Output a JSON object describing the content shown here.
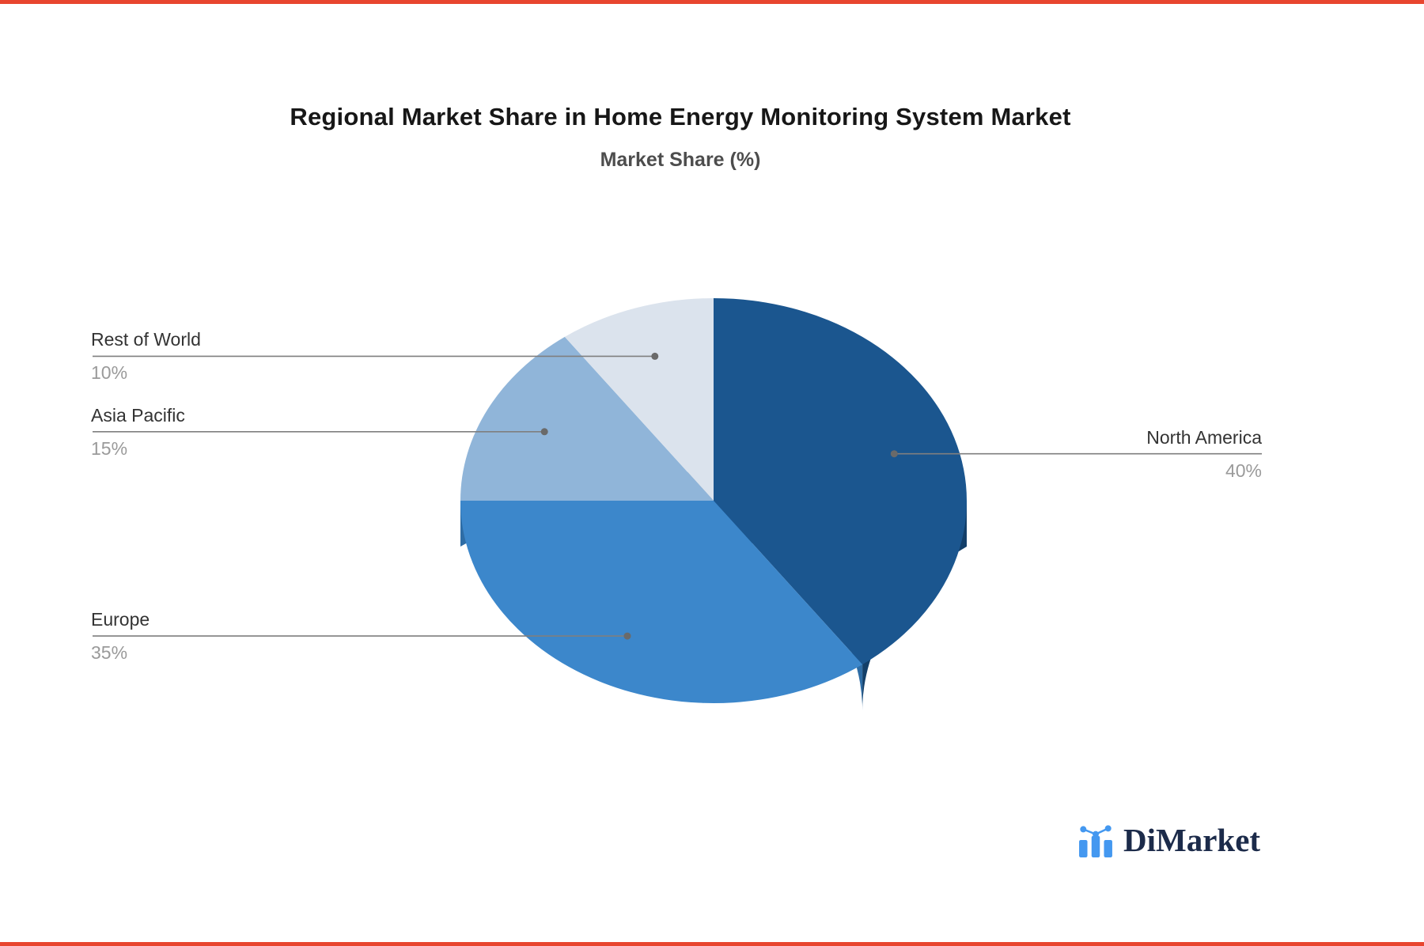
{
  "frame_color": "#e8452f",
  "title": "Regional Market Share in Home Energy Monitoring System Market",
  "subtitle": "Market Share (%)",
  "logo": {
    "text": "DiMarket",
    "icon": "mini-bar-line-chart",
    "icon_color": "#4498f0",
    "text_color": "#1c2b4a"
  },
  "chart_data": {
    "type": "pie",
    "style": "3d",
    "title": "Regional Market Share in Home Energy Monitoring System Market",
    "subtitle": "Market Share (%)",
    "unit": "%",
    "start_angle": "12-oclock",
    "direction": "clockwise",
    "legend_position": "none",
    "categories": [
      "North America",
      "Europe",
      "Asia Pacific",
      "Rest of World"
    ],
    "values": [
      40,
      35,
      15,
      10
    ],
    "slices": [
      {
        "label": "North America",
        "value": 40,
        "display_value": "40%",
        "color": "#1b568f",
        "side_color": "#133f69",
        "label_side": "right"
      },
      {
        "label": "Europe",
        "value": 35,
        "display_value": "35%",
        "color": "#3c87cb",
        "side_color": "#2e6da6",
        "label_side": "left"
      },
      {
        "label": "Asia Pacific",
        "value": 15,
        "display_value": "15%",
        "color": "#90b5d9",
        "side_color": "#7395b8",
        "label_side": "left"
      },
      {
        "label": "Rest of World",
        "value": 10,
        "display_value": "10%",
        "color": "#dbe3ed",
        "side_color": "#b8c3d1",
        "label_side": "left"
      }
    ],
    "label_name_color": "#333333",
    "label_value_color": "#9a9a9a",
    "leader_line_color": "#7f7f7f",
    "leader_dot_color": "#6a6a6a"
  }
}
